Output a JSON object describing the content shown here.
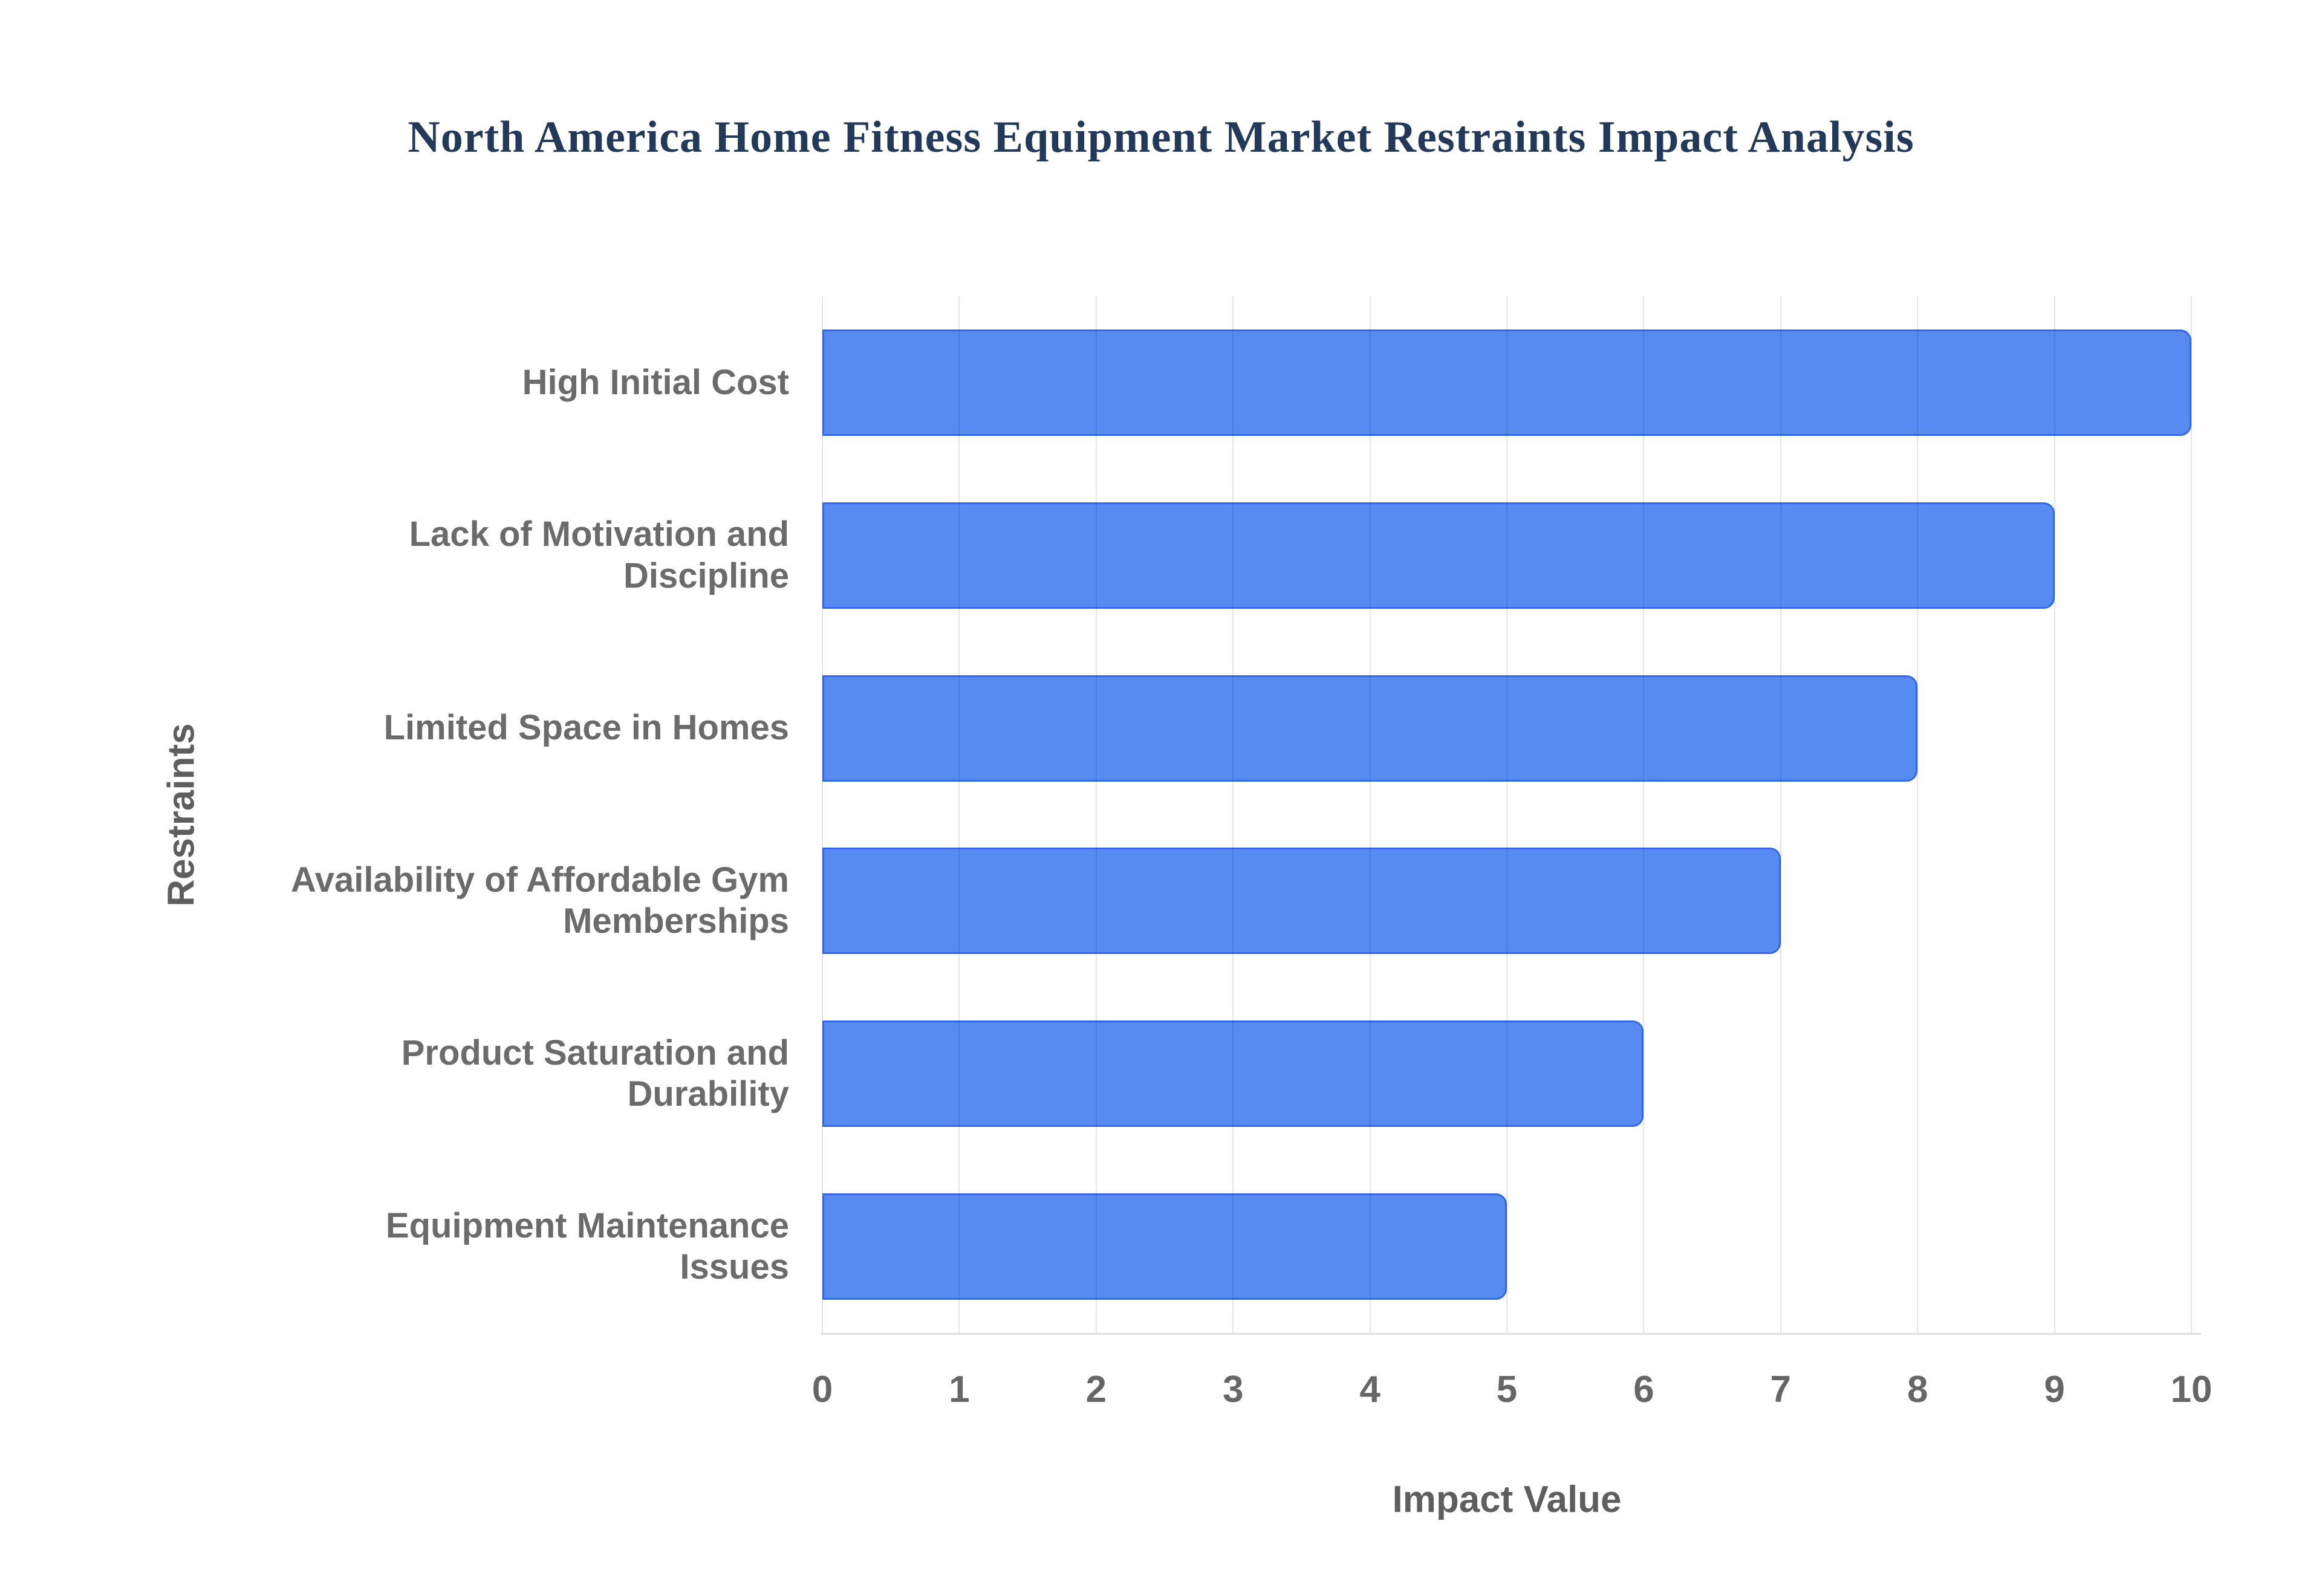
{
  "page": {
    "background": "#ffffff"
  },
  "chart_data": {
    "type": "bar",
    "orientation": "horizontal",
    "title": "North America Home Fitness Equipment Market Restraints Impact Analysis",
    "categories": [
      "High Initial Cost",
      "Lack of Motivation and\nDiscipline",
      "Limited Space in Homes",
      "Availability of Affordable Gym\nMemberships",
      "Product Saturation and\nDurability",
      "Equipment Maintenance Issues"
    ],
    "values": [
      10,
      9,
      8,
      7,
      6,
      5
    ],
    "xlabel": "Impact Value",
    "ylabel": "Restraints",
    "xlim": [
      0,
      10
    ],
    "xticks": [
      0,
      1,
      2,
      3,
      4,
      5,
      6,
      7,
      8,
      9,
      10
    ],
    "grid": true,
    "legend": false,
    "colors": {
      "bar_fill": "#578bf2",
      "bar_border": "#3468e8",
      "title_text": "#22395a",
      "category_text": "#6b6b6b",
      "tick_text": "#666666",
      "axis_title_text": "#5e5e5e",
      "gridline": "#e3e3e3",
      "axis_line": "#e0e0e0"
    }
  }
}
